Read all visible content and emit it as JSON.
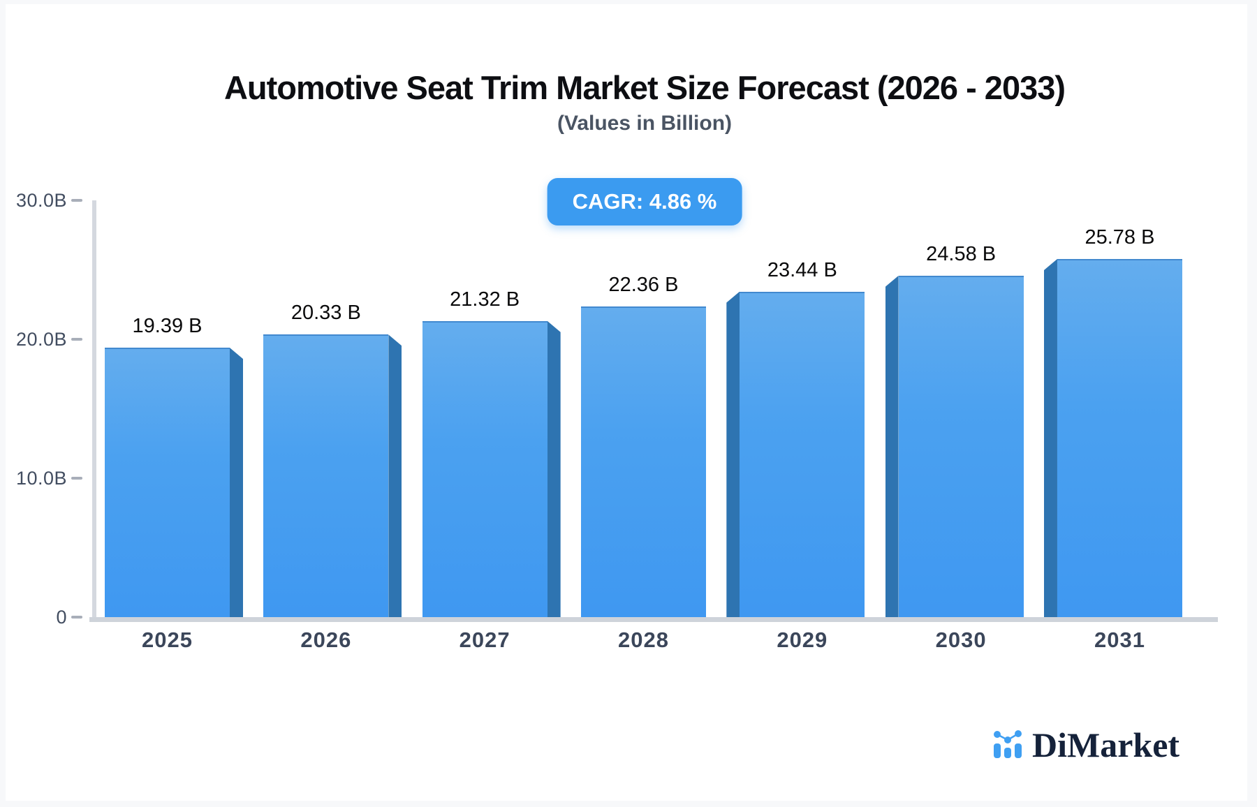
{
  "page": {
    "background": "#f7f8fa",
    "card_background": "#ffffff"
  },
  "header": {
    "title": "Automotive Seat Trim Market Size Forecast (2026 - 2033)",
    "subtitle": "(Values in Billion)",
    "cagr_badge": "CAGR: 4.86 %"
  },
  "chart_data": {
    "type": "bar",
    "title": "Automotive Seat Trim Market Size Forecast (2026 - 2033)",
    "subtitle": "(Values in Billion)",
    "unit": "Billion",
    "cagr_percent": 4.86,
    "categories": [
      "2025",
      "2026",
      "2027",
      "2028",
      "2029",
      "2030",
      "2031"
    ],
    "values": [
      19.39,
      20.33,
      21.32,
      22.36,
      23.44,
      24.58,
      25.78
    ],
    "value_labels": [
      "19.39 B",
      "20.33 B",
      "21.32 B",
      "22.36 B",
      "23.44 B",
      "24.58 B",
      "25.78 B"
    ],
    "y_axis": {
      "range": [
        0,
        30
      ],
      "ticks": [
        {
          "label": "30.0B",
          "value": 30
        },
        {
          "label": "20.0B",
          "value": 20
        },
        {
          "label": "10.0B",
          "value": 10
        },
        {
          "label": "0",
          "value": 0
        }
      ]
    },
    "legend": "none",
    "grid": "off",
    "bar_style": "3d-perspective"
  },
  "footer": {
    "brand": "DiMarket",
    "logo_icon": "bar-chart-with-trend-dots-icon"
  },
  "colors": {
    "accent_blue": "#3b9bf0",
    "bar_face_top": "#64adee",
    "bar_face_bottom": "#3f98f1",
    "bar_side": "#2e74b1",
    "axis_line": "#d4d8df",
    "tick": "#a8aeb9",
    "axis_text": "#424d60",
    "title_text": "#0d0e12",
    "subtitle_text": "#4a5463",
    "badge_text": "#ffffff",
    "logo_text": "#15223a",
    "logo_icon_blue": "#3f9ff2"
  }
}
